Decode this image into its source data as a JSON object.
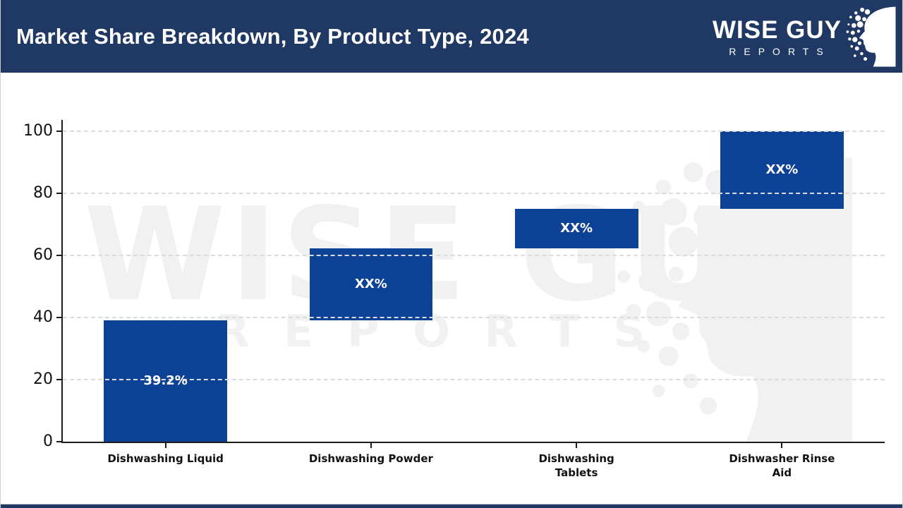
{
  "header": {
    "title": "Market Share Breakdown, By Product Type, 2024",
    "logo": {
      "name": "WISE GUY",
      "subtitle": "REPORTS"
    }
  },
  "watermark": {
    "line1": "WISE GUY",
    "line2": "REPORTS"
  },
  "chart_data": {
    "type": "bar",
    "subtype": "waterfall",
    "title": "Market Share Breakdown, By Product Type, 2024",
    "categories": [
      "Dishwashing Liquid",
      "Dishwashing Powder",
      "Dishwashing Tablets",
      "Dishwasher Rinse Aid"
    ],
    "category_lines": [
      [
        "Dishwashing Liquid"
      ],
      [
        "Dishwashing Powder"
      ],
      [
        "Dishwashing",
        "Tablets"
      ],
      [
        "Dishwasher Rinse",
        "Aid"
      ]
    ],
    "bars": [
      {
        "category": "Dishwashing Liquid",
        "label": "39.2%",
        "start": 0,
        "end": 39.2
      },
      {
        "category": "Dishwashing Powder",
        "label": "XX%",
        "start": 39.2,
        "end": 62.2
      },
      {
        "category": "Dishwashing Tablets",
        "label": "XX%",
        "start": 62.2,
        "end": 75
      },
      {
        "category": "Dishwasher Rinse Aid",
        "label": "XX%",
        "start": 75,
        "end": 100
      }
    ],
    "ylim": [
      0,
      100
    ],
    "yticks": [
      0,
      20,
      40,
      60,
      80,
      100
    ],
    "xlabel": "",
    "ylabel": "",
    "grid": "horizontal-dashed",
    "legend": null,
    "colors": {
      "bar": "#0b4296",
      "bar_label": "#ffffff",
      "grid": "#dcdcdc",
      "axis": "#1c1c1c",
      "tick_label": "#111111",
      "header_bg": "#1f3864",
      "watermark": "#f1f1f1"
    }
  }
}
